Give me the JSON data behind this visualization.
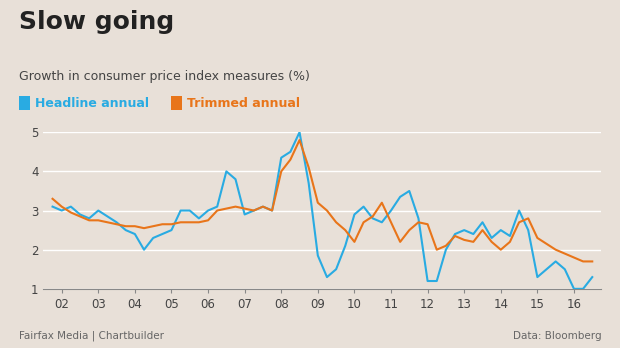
{
  "title": "Slow going",
  "subtitle": "Growth in consumer price index measures (%)",
  "legend": [
    "Headline annual",
    "Trimmed annual"
  ],
  "legend_colors": [
    "#29abe2",
    "#e8751a"
  ],
  "background_color": "#e8e0d8",
  "plot_bg_color": "#e8e0d8",
  "grid_color": "#ffffff",
  "ylim": [
    1,
    5
  ],
  "yticks": [
    1,
    2,
    3,
    4,
    5
  ],
  "footer_left": "Fairfax Media | Chartbuilder",
  "footer_right": "Data: Bloomberg",
  "headline_x": [
    2001.75,
    2002.0,
    2002.25,
    2002.5,
    2002.75,
    2003.0,
    2003.25,
    2003.5,
    2003.75,
    2004.0,
    2004.25,
    2004.5,
    2004.75,
    2005.0,
    2005.25,
    2005.5,
    2005.75,
    2006.0,
    2006.25,
    2006.5,
    2006.75,
    2007.0,
    2007.25,
    2007.5,
    2007.75,
    2008.0,
    2008.25,
    2008.5,
    2008.75,
    2009.0,
    2009.25,
    2009.5,
    2009.75,
    2010.0,
    2010.25,
    2010.5,
    2010.75,
    2011.0,
    2011.25,
    2011.5,
    2011.75,
    2012.0,
    2012.25,
    2012.5,
    2012.75,
    2013.0,
    2013.25,
    2013.5,
    2013.75,
    2014.0,
    2014.25,
    2014.5,
    2014.75,
    2015.0,
    2015.25,
    2015.5,
    2015.75,
    2016.0,
    2016.25,
    2016.5
  ],
  "headline_y": [
    3.1,
    3.0,
    3.1,
    2.9,
    2.8,
    3.0,
    2.85,
    2.7,
    2.5,
    2.4,
    2.0,
    2.3,
    2.4,
    2.5,
    3.0,
    3.0,
    2.8,
    3.0,
    3.1,
    4.0,
    3.8,
    2.9,
    3.0,
    3.1,
    3.0,
    4.35,
    4.5,
    5.0,
    3.7,
    1.85,
    1.3,
    1.5,
    2.1,
    2.9,
    3.1,
    2.8,
    2.7,
    3.0,
    3.35,
    3.5,
    2.8,
    1.2,
    1.2,
    2.0,
    2.4,
    2.5,
    2.4,
    2.7,
    2.3,
    2.5,
    2.35,
    3.0,
    2.5,
    1.3,
    1.5,
    1.7,
    1.5,
    1.0,
    1.0,
    1.3
  ],
  "trimmed_x": [
    2001.75,
    2002.0,
    2002.25,
    2002.5,
    2002.75,
    2003.0,
    2003.25,
    2003.5,
    2003.75,
    2004.0,
    2004.25,
    2004.5,
    2004.75,
    2005.0,
    2005.25,
    2005.5,
    2005.75,
    2006.0,
    2006.25,
    2006.5,
    2006.75,
    2007.0,
    2007.25,
    2007.5,
    2007.75,
    2008.0,
    2008.25,
    2008.5,
    2008.75,
    2009.0,
    2009.25,
    2009.5,
    2009.75,
    2010.0,
    2010.25,
    2010.5,
    2010.75,
    2011.0,
    2011.25,
    2011.5,
    2011.75,
    2012.0,
    2012.25,
    2012.5,
    2012.75,
    2013.0,
    2013.25,
    2013.5,
    2013.75,
    2014.0,
    2014.25,
    2014.5,
    2014.75,
    2015.0,
    2015.25,
    2015.5,
    2015.75,
    2016.0,
    2016.25,
    2016.5
  ],
  "trimmed_y": [
    3.3,
    3.1,
    2.95,
    2.85,
    2.75,
    2.75,
    2.7,
    2.65,
    2.6,
    2.6,
    2.55,
    2.6,
    2.65,
    2.65,
    2.7,
    2.7,
    2.7,
    2.75,
    3.0,
    3.05,
    3.1,
    3.05,
    3.0,
    3.1,
    3.0,
    4.0,
    4.3,
    4.8,
    4.1,
    3.2,
    3.0,
    2.7,
    2.5,
    2.2,
    2.7,
    2.85,
    3.2,
    2.7,
    2.2,
    2.5,
    2.7,
    2.65,
    2.0,
    2.1,
    2.35,
    2.25,
    2.2,
    2.5,
    2.2,
    2.0,
    2.2,
    2.7,
    2.8,
    2.3,
    2.15,
    2.0,
    1.9,
    1.8,
    1.7,
    1.7
  ]
}
